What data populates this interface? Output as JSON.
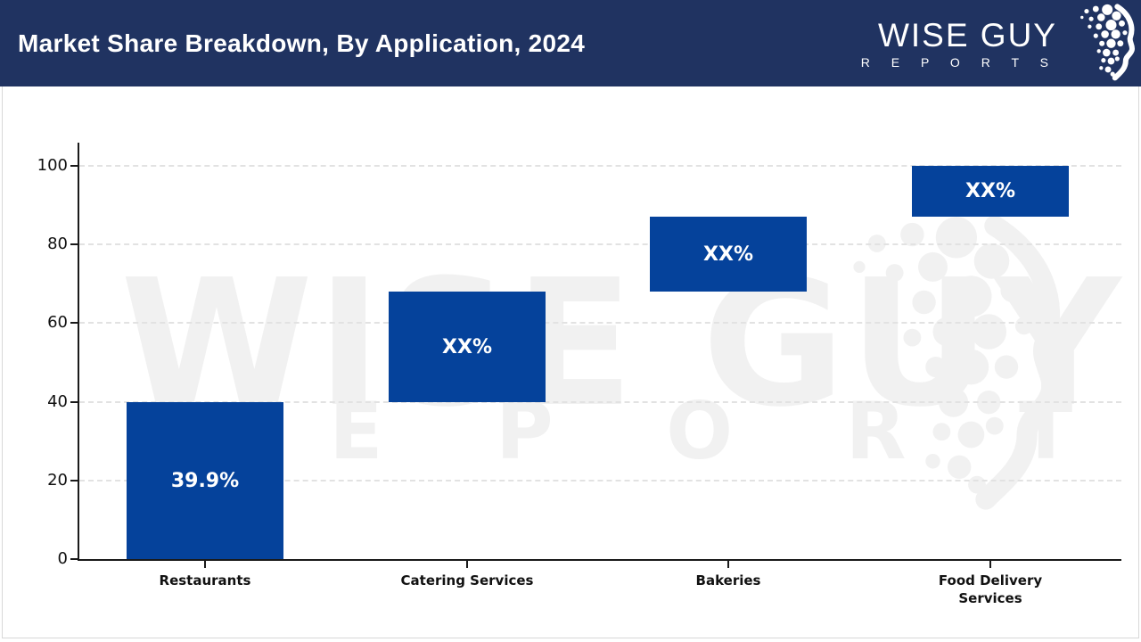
{
  "header": {
    "title": "Market Share Breakdown, By Application, 2024",
    "logo": {
      "line1": "WISE GUY",
      "line2": "R E P O R T S",
      "head_icon": "dotted-face-profile"
    },
    "background_color": "#203361"
  },
  "watermark": {
    "line1": "WISE GUY",
    "line2": "R E P O R T S",
    "head_icon": "dotted-face-profile",
    "color": "#f1f1f1"
  },
  "chart_data": {
    "type": "bar",
    "subtype": "waterfall",
    "title": "Market Share Breakdown, By Application, 2024",
    "categories": [
      "Restaurants",
      "Catering Services",
      "Bakeries",
      "Food Delivery\nServices"
    ],
    "bars": [
      {
        "label": "Restaurants",
        "start": 0,
        "end": 39.9,
        "value_label": "39.9%"
      },
      {
        "label": "Catering Services",
        "start": 39.9,
        "end": 68,
        "value_label": "XX%"
      },
      {
        "label": "Bakeries",
        "start": 68,
        "end": 87,
        "value_label": "XX%"
      },
      {
        "label": "Food Delivery Services",
        "start": 87,
        "end": 100,
        "value_label": "XX%"
      }
    ],
    "yticks": [
      0,
      20,
      40,
      60,
      80,
      100
    ],
    "ylim": [
      0,
      106
    ],
    "xlabel": "",
    "ylabel": "",
    "grid": true,
    "gridline_values": [
      20,
      40,
      60,
      80,
      100
    ],
    "legend": false,
    "bar_color": "#05429b",
    "value_label_color": "#ffffff",
    "axis_color": "#1a1a1a",
    "gridline_color": "#e2e2e2"
  }
}
